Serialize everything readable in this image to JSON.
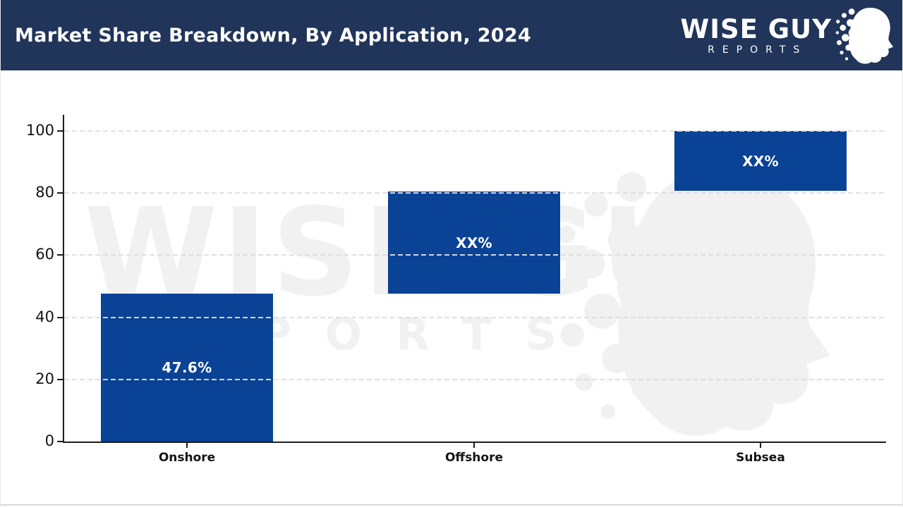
{
  "header": {
    "title": "Market Share Breakdown, By Application, 2024",
    "logo": {
      "brand_top": "WISE GUY",
      "brand_bottom": "REPORTS"
    }
  },
  "watermark": {
    "line1": "WISE GUY",
    "line2": "REPORTS"
  },
  "chart_data": {
    "type": "bar",
    "variant": "waterfall",
    "title": "Market Share Breakdown, By Application, 2024",
    "categories": [
      "Onshore",
      "Offshore",
      "Subsea"
    ],
    "segments": [
      {
        "category": "Onshore",
        "start": 0,
        "end": 47.6,
        "label": "47.6%"
      },
      {
        "category": "Offshore",
        "start": 47.6,
        "end": 80.5,
        "label": "XX%"
      },
      {
        "category": "Subsea",
        "start": 80.7,
        "end": 100,
        "label": "XX%"
      }
    ],
    "xlabel": "",
    "ylabel": "",
    "ylim": [
      0,
      100
    ],
    "yticks": [
      0,
      20,
      40,
      60,
      80,
      100
    ],
    "grid": "horizontal-dashed-over-bars",
    "legend": "none",
    "bar_color": "#0a4296",
    "bar_label_color": "#ffffff"
  },
  "colors": {
    "header_bg": "#213459",
    "bar": "#0a4296",
    "axis": "#1c1c1c",
    "gridline": "#dedede",
    "watermark": "#f1f1f1",
    "title_text": "#ffffff"
  }
}
